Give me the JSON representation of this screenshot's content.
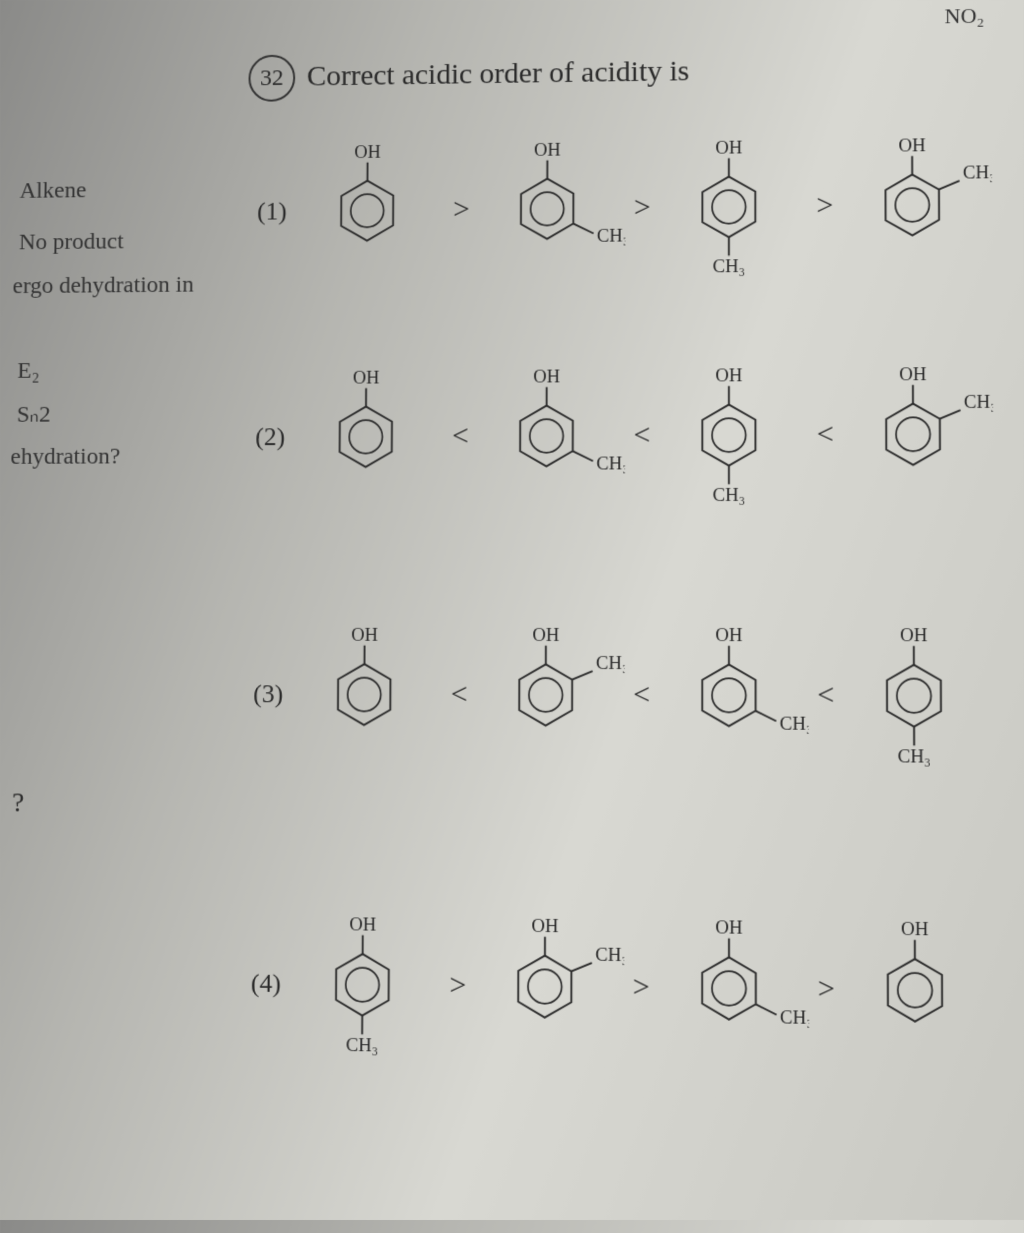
{
  "partial_top_right": "NO₂",
  "left_fragments": {
    "l1": "Alkene",
    "l2": "No product",
    "l3": "ergo dehydration in",
    "l4": "E₂",
    "l5": "Sₙ2",
    "l6": "ehydration?",
    "qmark": "?"
  },
  "question": {
    "number": "32",
    "text": "Correct acidic order of acidity is"
  },
  "labels": {
    "OH": "OH",
    "CH3": "CH₃"
  },
  "options": {
    "o1": {
      "label": "(1)",
      "mols": [
        "phenol",
        "m-cresol",
        "p-cresol",
        "o-cresol"
      ],
      "rels": [
        ">",
        ">",
        ">"
      ]
    },
    "o2": {
      "label": "(2)",
      "mols": [
        "phenol",
        "m-cresol",
        "p-cresol",
        "o-cresol"
      ],
      "rels": [
        "<",
        "<",
        "<"
      ]
    },
    "o3": {
      "label": "(3)",
      "mols": [
        "phenol",
        "o-cresol",
        "m-cresol",
        "p-cresol"
      ],
      "rels": [
        "<",
        "<",
        "<"
      ]
    },
    "o4": {
      "label": "(4)",
      "mols": [
        "p-cresol",
        "o-cresol",
        "m-cresol",
        "phenol"
      ],
      "rels": [
        ">",
        ">",
        ">"
      ]
    }
  },
  "style": {
    "stroke": "#2a2a2a",
    "stroke_width": 2.2,
    "font_family": "Times New Roman",
    "label_fontsize": 22,
    "ring_radius": 36
  },
  "row_tops": {
    "o1": 120,
    "o2": 350,
    "o3": 610,
    "o4": 900
  }
}
